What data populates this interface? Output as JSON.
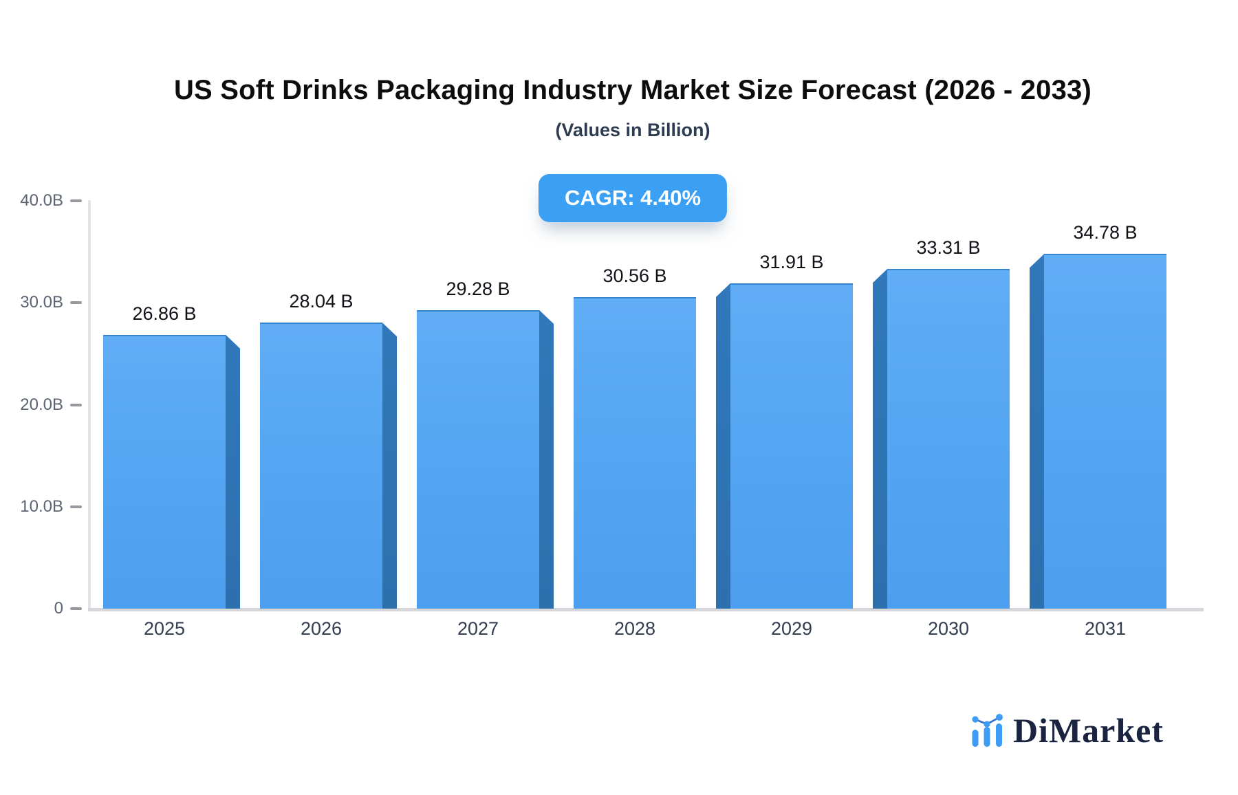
{
  "chart_data": {
    "type": "bar",
    "title": "US Soft Drinks Packaging Industry Market Size Forecast (2026 - 2033)",
    "subtitle": "(Values in Billion)",
    "annotation_badge": "CAGR: 4.40%",
    "categories": [
      "2025",
      "2026",
      "2027",
      "2028",
      "2029",
      "2030",
      "2031"
    ],
    "values": [
      26.86,
      28.04,
      29.28,
      30.56,
      31.91,
      33.31,
      34.78
    ],
    "value_labels": [
      "26.86 B",
      "28.04 B",
      "29.28 B",
      "30.56 B",
      "31.91 B",
      "33.31 B",
      "34.78 B"
    ],
    "xlabel": "",
    "ylabel": "",
    "ylim": [
      0,
      40
    ],
    "yticks": [
      {
        "v": 40,
        "label": "40.0B"
      },
      {
        "v": 30,
        "label": "30.0B"
      },
      {
        "v": 20,
        "label": "20.0B"
      },
      {
        "v": 10,
        "label": "10.0B"
      },
      {
        "v": 0,
        "label": "0"
      }
    ],
    "grid": false,
    "legend": false,
    "bar_front_color": "#55A6F2",
    "bar_side_color": "#2F76B8",
    "effect": "3d-beveled-bars-center-perspective"
  },
  "logo": {
    "name": "DiMarket",
    "icon": "bar-line-chart-logo-icon",
    "color": "#1A2440",
    "accent": "#3E9CF4"
  },
  "colors": {
    "badge_bg": "#3B9FF3",
    "badge_text": "#FFFFFF",
    "axis_line": "#E2E3E7",
    "baseline": "#D6D7DB",
    "tick": "#96999F",
    "ylabel_text": "#5B6372",
    "xlabel_text": "#333E50",
    "value_label_text": "#101318",
    "title_text": "#0D0D0D",
    "subtitle_text": "#2E3C52"
  }
}
